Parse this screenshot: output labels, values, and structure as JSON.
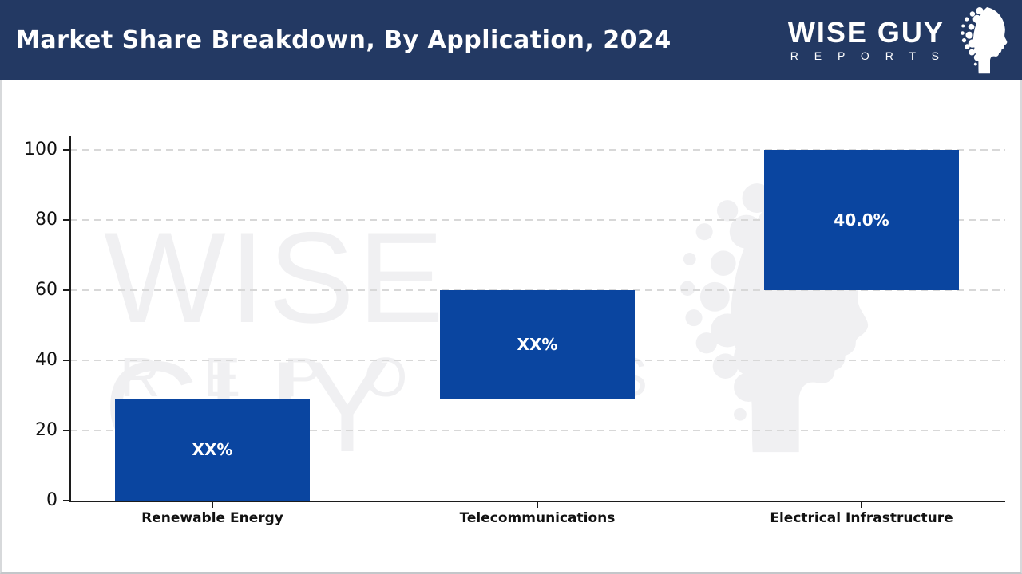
{
  "header": {
    "title": "Market Share Breakdown, By Application, 2024",
    "logo": {
      "line1": "WISE GUY",
      "line2": "REPORTS"
    }
  },
  "watermark": {
    "line1": "WISE GUY",
    "line2": "REPORTS"
  },
  "colors": {
    "header_bg": "#233963",
    "bar_fill": "#0a45a0",
    "bar_label": "#ffffff",
    "grid": "#d8d8d8",
    "axis": "#1c1c1c",
    "tick_text": "#111111",
    "watermark": "#f0f0f2",
    "canvas_bg": "#ffffff",
    "bottom_rule": "#c3c7ca"
  },
  "chart_data": {
    "type": "bar",
    "subtype": "floating-waterfall",
    "title": "Market Share Breakdown, By Application, 2024",
    "xlabel": "",
    "ylabel": "",
    "categories": [
      "Renewable Energy",
      "Telecommunications",
      "Electrical Infrastructure"
    ],
    "segments": [
      {
        "category": "Renewable Energy",
        "start": 0,
        "end": 29,
        "label": "XX%"
      },
      {
        "category": "Telecommunications",
        "start": 29,
        "end": 60,
        "label": "XX%"
      },
      {
        "category": "Electrical Infrastructure",
        "start": 60,
        "end": 100,
        "label": "40.0%"
      }
    ],
    "ylim": [
      0,
      100
    ],
    "yticks": [
      0,
      20,
      40,
      60,
      80,
      100
    ],
    "grid": "horizontal-dashed",
    "legend": null
  }
}
